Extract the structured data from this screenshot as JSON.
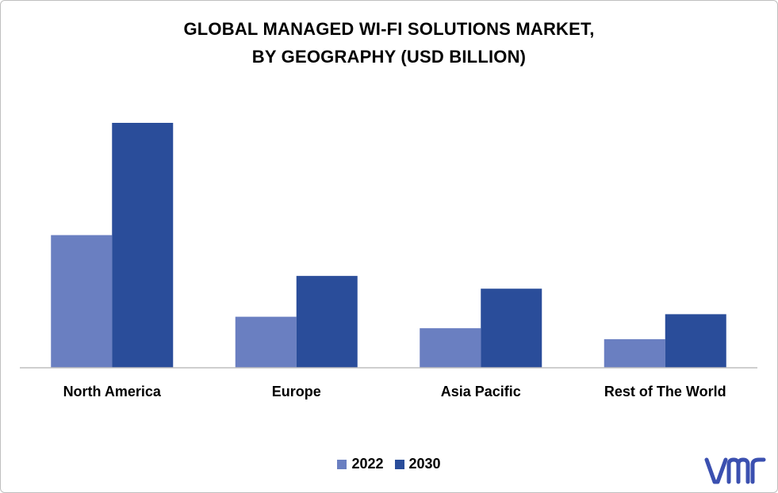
{
  "chart_data": {
    "type": "bar",
    "title": "GLOBAL MANAGED WI-FI SOLUTIONS MARKET,",
    "subtitle": "BY GEOGRAPHY (USD BILLION)",
    "categories": [
      "North America",
      "Europe",
      "Asia Pacific",
      "Rest of The World"
    ],
    "series": [
      {
        "name": "2022",
        "color": "#6a7fc1",
        "values": [
          5.2,
          2.0,
          1.55,
          1.12
        ]
      },
      {
        "name": "2030",
        "color": "#2a4d9a",
        "values": [
          9.6,
          3.6,
          3.1,
          2.1
        ]
      }
    ],
    "ylim": [
      0,
      10
    ],
    "grid": false,
    "legend_position": "bottom"
  },
  "logo": {
    "text": "vmr",
    "color": "#3b50b0"
  }
}
